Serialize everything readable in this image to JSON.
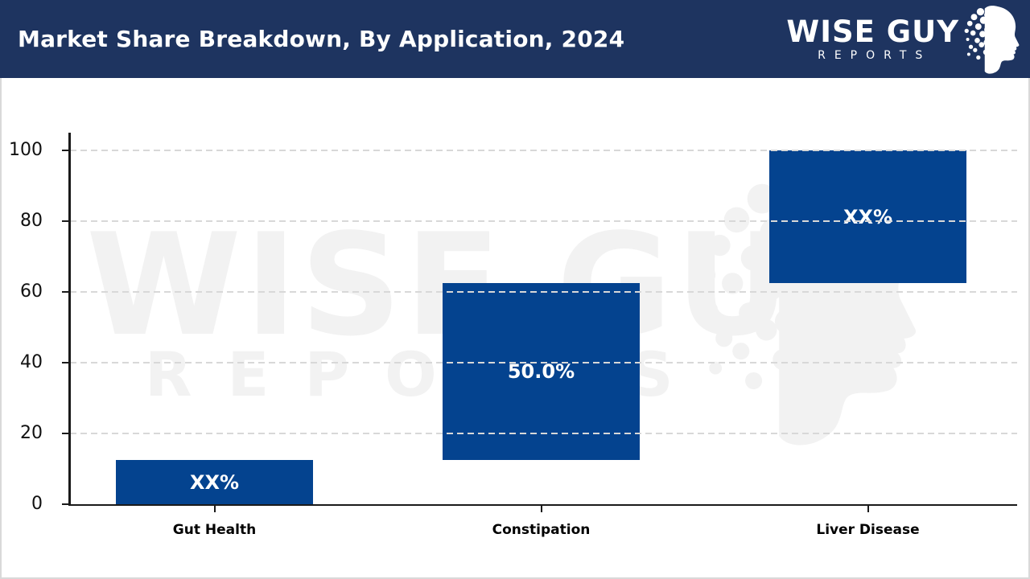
{
  "header": {
    "title": "Market Share Breakdown, By Application, 2024",
    "brand": {
      "line1": "WISE GUY",
      "line2": "REPORTS"
    }
  },
  "watermark": {
    "line1": "WISE GUY",
    "line2": "REPORTS"
  },
  "colors": {
    "header_bg": "#1e3460",
    "bar": "#04438f",
    "grid": "#d8d8d8",
    "axis": "#1a1a1a",
    "bar_label": "#ffffff",
    "watermark": "#f2f2f2"
  },
  "chart_data": {
    "type": "bar",
    "subtype": "floating-waterfall",
    "title": "Market Share Breakdown, By Application, 2024",
    "categories": [
      "Gut Health",
      "Constipation",
      "Liver Disease"
    ],
    "segments": [
      {
        "category": "Gut Health",
        "start": 0,
        "end": 12.5,
        "label": "XX%"
      },
      {
        "category": "Constipation",
        "start": 12.5,
        "end": 62.5,
        "label": "50.0%"
      },
      {
        "category": "Liver Disease",
        "start": 62.5,
        "end": 100,
        "label": "XX%"
      }
    ],
    "xlabel": "",
    "ylabel": "",
    "ylim": [
      0,
      100
    ],
    "yticks": [
      0,
      20,
      40,
      60,
      80,
      100
    ],
    "grid": "horizontal-dashed",
    "legend": "none",
    "bar_color": "#04438f"
  }
}
